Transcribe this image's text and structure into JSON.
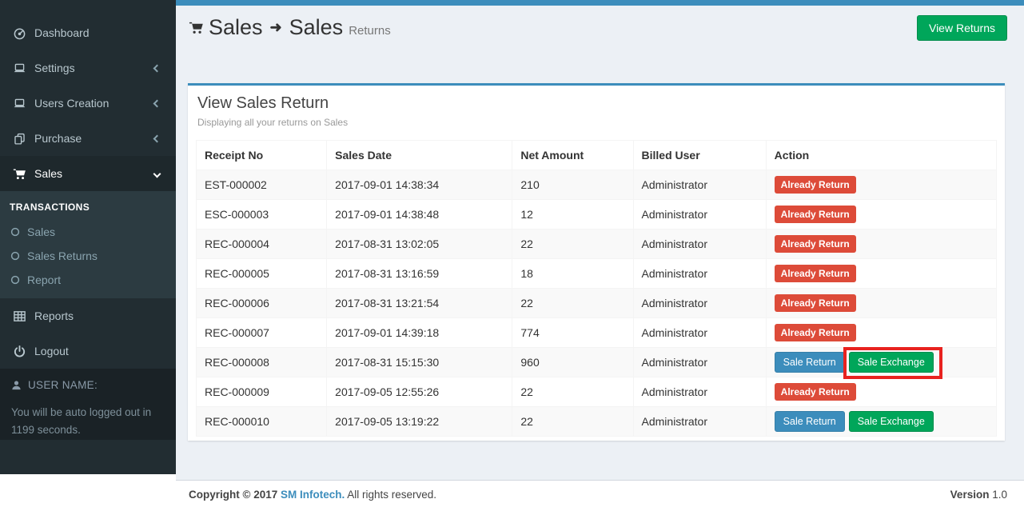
{
  "sidebar": {
    "items": [
      {
        "label": "Dashboard",
        "icon": "dashboard-icon",
        "chevron": null,
        "active": false
      },
      {
        "label": "Settings",
        "icon": "laptop-icon",
        "chevron": "left",
        "active": false
      },
      {
        "label": "Users Creation",
        "icon": "laptop-icon",
        "chevron": "left",
        "active": false
      },
      {
        "label": "Purchase",
        "icon": "copy-icon",
        "chevron": "left",
        "active": false
      },
      {
        "label": "Sales",
        "icon": "cart-icon",
        "chevron": "down",
        "active": true
      }
    ],
    "section_header": "TRANSACTIONS",
    "submenu": [
      {
        "label": "Sales",
        "icon": "circle-icon"
      },
      {
        "label": "Sales Returns",
        "icon": "circle-icon"
      },
      {
        "label": "Report",
        "icon": "circle-icon"
      }
    ],
    "items_bottom": [
      {
        "label": "Reports",
        "icon": "table-icon"
      },
      {
        "label": "Logout",
        "icon": "power-icon"
      }
    ],
    "user_label": "USER NAME:",
    "user_icon": "person-icon",
    "logout_notice_line1": "You will be auto logged out in",
    "logout_notice_line2": "1199 seconds."
  },
  "header": {
    "breadcrumb_icon": "cart-icon",
    "breadcrumb_primary": "Sales",
    "breadcrumb_arrow": "➜",
    "breadcrumb_secondary": "Sales",
    "breadcrumb_suffix": "Returns",
    "button": "View Returns"
  },
  "panel": {
    "title": "View Sales Return",
    "subtitle": "Displaying all your returns on Sales"
  },
  "table": {
    "columns": [
      "Receipt No",
      "Sales Date",
      "Net Amount",
      "Billed User",
      "Action"
    ],
    "action_labels": {
      "already_return": "Already Return",
      "sale_return": "Sale Return",
      "sale_exchange": "Sale Exchange"
    },
    "rows": [
      {
        "receipt": "EST-000002",
        "date": "2017-09-01 14:38:34",
        "amount": "210",
        "user": "Administrator",
        "actions": [
          "already_return"
        ],
        "highlight_exchange": false
      },
      {
        "receipt": "ESC-000003",
        "date": "2017-09-01 14:38:48",
        "amount": "12",
        "user": "Administrator",
        "actions": [
          "already_return"
        ],
        "highlight_exchange": false
      },
      {
        "receipt": "REC-000004",
        "date": "2017-08-31 13:02:05",
        "amount": "22",
        "user": "Administrator",
        "actions": [
          "already_return"
        ],
        "highlight_exchange": false
      },
      {
        "receipt": "REC-000005",
        "date": "2017-08-31 13:16:59",
        "amount": "18",
        "user": "Administrator",
        "actions": [
          "already_return"
        ],
        "highlight_exchange": false
      },
      {
        "receipt": "REC-000006",
        "date": "2017-08-31 13:21:54",
        "amount": "22",
        "user": "Administrator",
        "actions": [
          "already_return"
        ],
        "highlight_exchange": false
      },
      {
        "receipt": "REC-000007",
        "date": "2017-09-01 14:39:18",
        "amount": "774",
        "user": "Administrator",
        "actions": [
          "already_return"
        ],
        "highlight_exchange": false
      },
      {
        "receipt": "REC-000008",
        "date": "2017-08-31 15:15:30",
        "amount": "960",
        "user": "Administrator",
        "actions": [
          "sale_return",
          "sale_exchange"
        ],
        "highlight_exchange": true
      },
      {
        "receipt": "REC-000009",
        "date": "2017-09-05 12:55:26",
        "amount": "22",
        "user": "Administrator",
        "actions": [
          "already_return"
        ],
        "highlight_exchange": false
      },
      {
        "receipt": "REC-000010",
        "date": "2017-09-05 13:19:22",
        "amount": "22",
        "user": "Administrator",
        "actions": [
          "sale_return",
          "sale_exchange"
        ],
        "highlight_exchange": false
      }
    ]
  },
  "footer": {
    "copyright_prefix": "Copyright © 2017",
    "company": "SM Infotech.",
    "copyright_suffix": "All rights reserved.",
    "version_label": "Version",
    "version_value": "1.0"
  },
  "colors": {
    "accent_blue": "#3c8dbc",
    "success_green": "#00a65a",
    "danger_red": "#dd4b39",
    "annotation_red": "#e8221f",
    "sidebar_bg": "#222d32",
    "submenu_bg": "#2c3b41",
    "content_bg": "#ecf0f5"
  }
}
